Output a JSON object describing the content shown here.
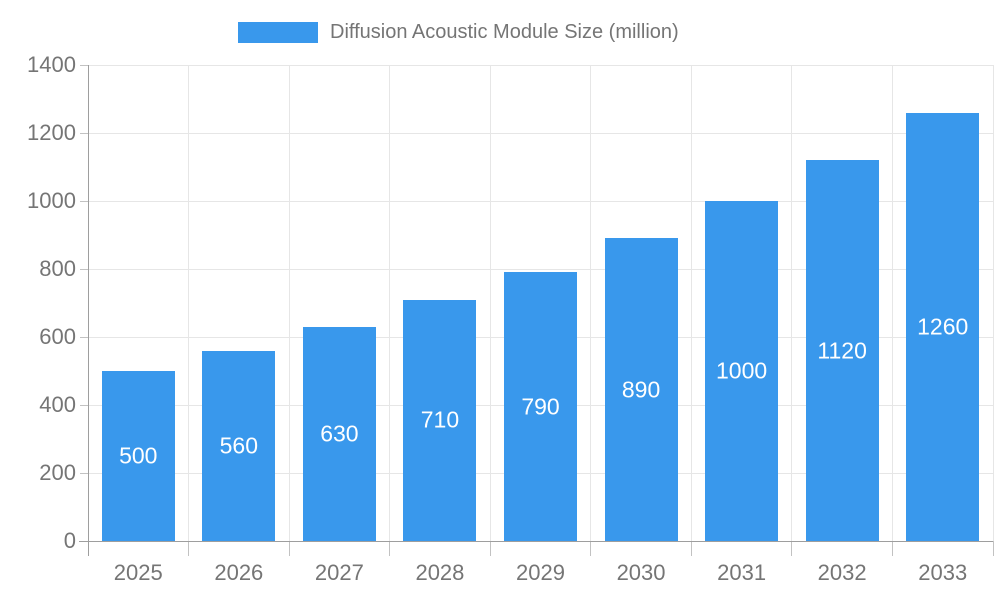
{
  "legend": {
    "label": "Diffusion Acoustic Module Size (million)",
    "swatch_color": "#3998EC"
  },
  "colors": {
    "bar": "#3998EC",
    "bar_label_text": "#FFFFFF",
    "axis_text": "#757575",
    "axis_line": "#9E9E9E",
    "gridline": "#E6E6E6",
    "background": "#FFFFFF"
  },
  "chart_data": {
    "type": "bar",
    "title": "Diffusion Acoustic Module Size (million)",
    "categories": [
      "2025",
      "2026",
      "2027",
      "2028",
      "2029",
      "2030",
      "2031",
      "2032",
      "2033"
    ],
    "values": [
      500,
      560,
      630,
      710,
      790,
      890,
      1000,
      1120,
      1260
    ],
    "series": [
      {
        "name": "Diffusion Acoustic Module Size (million)",
        "values": [
          500,
          560,
          630,
          710,
          790,
          890,
          1000,
          1120,
          1260
        ]
      }
    ],
    "xlabel": "",
    "ylabel": "",
    "ylim": [
      0,
      1400
    ],
    "y_ticks": [
      0,
      200,
      400,
      600,
      800,
      1000,
      1200,
      1400
    ],
    "grid": true,
    "legend_position": "top",
    "data_labels": "inside-center"
  }
}
